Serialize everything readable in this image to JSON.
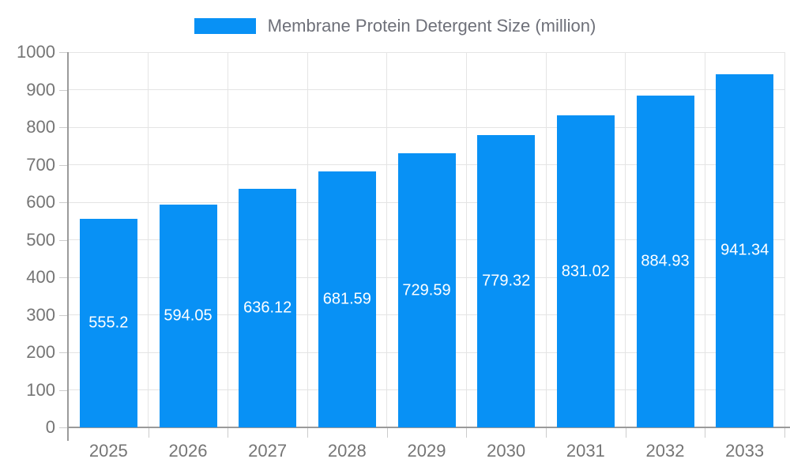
{
  "chart_data": {
    "type": "bar",
    "title": "Membrane Protein Detergent Size (million)",
    "legend_position": "top",
    "categories": [
      "2025",
      "2026",
      "2027",
      "2028",
      "2029",
      "2030",
      "2031",
      "2032",
      "2033"
    ],
    "series": [
      {
        "name": "Membrane Protein Detergent Size (million)",
        "values": [
          555.2,
          594.05,
          636.12,
          681.59,
          729.59,
          779.32,
          831.02,
          884.93,
          941.34
        ]
      }
    ],
    "value_labels": [
      "555.2",
      "594.05",
      "636.12",
      "681.59",
      "729.59",
      "779.32",
      "831.02",
      "884.93",
      "941.34"
    ],
    "xlabel": "",
    "ylabel": "",
    "ylim": [
      0,
      1000
    ],
    "y_tick_step": 100,
    "y_tick_labels": [
      "0",
      "100",
      "200",
      "300",
      "400",
      "500",
      "600",
      "700",
      "800",
      "900",
      "1000"
    ],
    "grid": true,
    "colors": {
      "bar": "#0891f5",
      "grid": "#e4e4e4",
      "tick": "#cccccc",
      "axis_line": "#9a9a9a",
      "axis_text": "#757575",
      "legend_text": "#6e7079",
      "value_text": "#ffffff"
    }
  }
}
